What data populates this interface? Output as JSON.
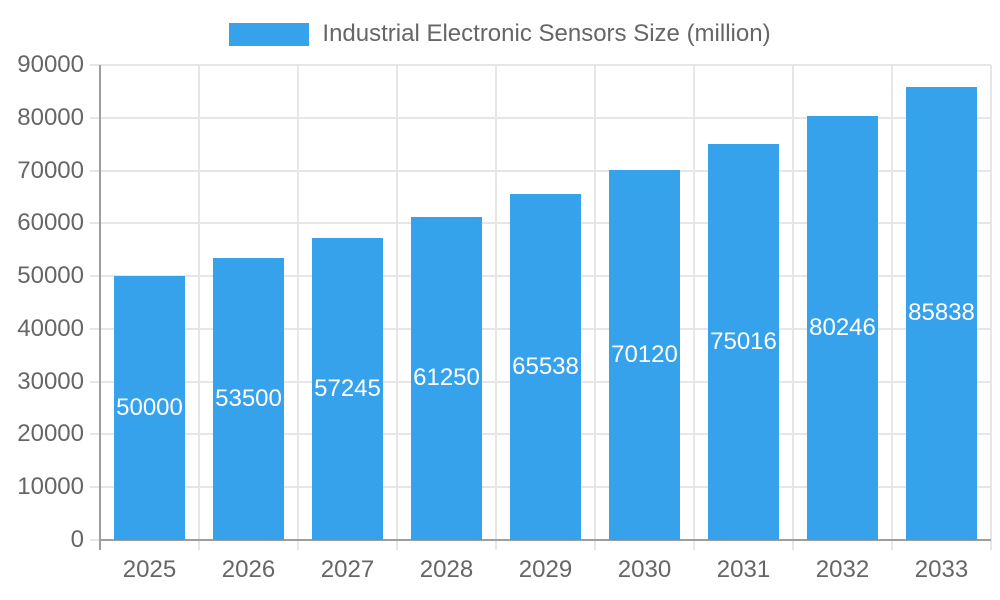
{
  "legend": {
    "label": "Industrial Electronic Sensors Size (million)",
    "swatch_color": "#36A2EB"
  },
  "colors": {
    "bar": "#36A2EB",
    "axis_text": "#666666",
    "bar_value_text": "#FFFFFF",
    "gridline": "#E6E6E6",
    "axis_line": "#9E9E9E",
    "background": "#FFFFFF"
  },
  "chart_data": {
    "type": "bar",
    "title": "",
    "xlabel": "",
    "ylabel": "",
    "categories": [
      "2025",
      "2026",
      "2027",
      "2028",
      "2029",
      "2030",
      "2031",
      "2032",
      "2033"
    ],
    "series": [
      {
        "name": "Industrial Electronic Sensors Size (million)",
        "color": "#36A2EB",
        "values": [
          50000,
          53500,
          57245,
          61250,
          65538,
          70120,
          75016,
          80246,
          85838
        ]
      }
    ],
    "value_labels": [
      "50000",
      "53500",
      "57245",
      "61250",
      "65538",
      "70120",
      "75016",
      "80246",
      "85838"
    ],
    "value_label_position": "inside-center",
    "ylim": [
      0,
      90000
    ],
    "yticks": [
      0,
      10000,
      20000,
      30000,
      40000,
      50000,
      60000,
      70000,
      80000,
      90000
    ],
    "ytick_labels": [
      "0",
      "10000",
      "20000",
      "30000",
      "40000",
      "50000",
      "60000",
      "70000",
      "80000",
      "90000"
    ],
    "grid": true,
    "legend_position": "top-center"
  }
}
